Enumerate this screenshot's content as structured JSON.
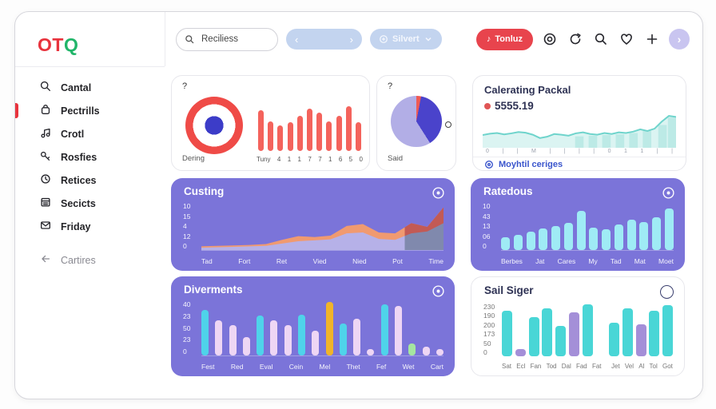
{
  "sidebar": {
    "logo_red": "OT",
    "logo_green": "Q",
    "items": [
      {
        "label": "Cantal",
        "icon": "search-icon"
      },
      {
        "label": "Pectrills",
        "icon": "bag-icon",
        "active": true
      },
      {
        "label": "Crotl",
        "icon": "music-icon"
      },
      {
        "label": "Rosfies",
        "icon": "key-icon"
      },
      {
        "label": "Retices",
        "icon": "clock-icon"
      },
      {
        "label": "Secicts",
        "icon": "list-icon"
      },
      {
        "label": "Friday",
        "icon": "mail-icon"
      }
    ],
    "back_label": "Cartires"
  },
  "topbar": {
    "search_value": "Reciliess",
    "pager_prev": "‹",
    "pager_next": "›",
    "filter_label": "Silvert",
    "button_icon": "♪",
    "button_label": "Tonluz",
    "avatar_glyph": "›"
  },
  "colors": {
    "accent_red": "#e8444d",
    "accent_green": "#21b569",
    "pill_blue": "#c3d4ef",
    "card_purple": "#7b74d9",
    "navy_text": "#2e3254",
    "link_blue": "#3a55cc"
  },
  "cards": {
    "overview": {
      "help": "?",
      "label": "Dering"
    },
    "pie_card": {
      "help": "?",
      "label": "Said"
    },
    "calerating": {
      "title": "Calerating Packal",
      "value": "5555.19",
      "link_label": "Moyhtil ceriges"
    },
    "custing": {
      "title": "Custing"
    },
    "ratedous": {
      "title": "Ratedous"
    },
    "diverments": {
      "title": "Diverments"
    },
    "sail": {
      "title": "Sail Siger"
    }
  },
  "chart_data": {
    "overview_bars": {
      "type": "bar",
      "color": "#f4635c",
      "values": [
        85,
        62,
        53,
        60,
        73,
        88,
        80,
        62,
        73,
        93,
        60
      ],
      "ticks": [
        "Tuny",
        "4",
        "1",
        "1",
        "7",
        "7",
        "1",
        "6",
        "5",
        "0"
      ]
    },
    "pie": {
      "type": "pie",
      "slices": [
        {
          "value": 3,
          "color": "#ef5a55"
        },
        {
          "value": 38,
          "color": "#4a43cb"
        },
        {
          "value": 59,
          "color": "#b2aee6"
        }
      ]
    },
    "calerating_spark": {
      "type": "area-line",
      "line_color": "#6fd4cc",
      "fill": "rgba(160,225,220,0.38)",
      "bar_color": "#bde9e5",
      "points": [
        38,
        42,
        44,
        40,
        43,
        47,
        45,
        39,
        29,
        33,
        41,
        39,
        36,
        43,
        46,
        41,
        39,
        44,
        41,
        46,
        44,
        48,
        55,
        50,
        57,
        78,
        95,
        92
      ],
      "bars": [
        {
          "x": 50,
          "v": 34
        },
        {
          "x": 57,
          "v": 36
        },
        {
          "x": 64,
          "v": 38
        },
        {
          "x": 71,
          "v": 40
        },
        {
          "x": 78,
          "v": 44
        },
        {
          "x": 85,
          "v": 50
        },
        {
          "x": 93,
          "v": 68
        },
        {
          "x": 98,
          "v": 90
        }
      ],
      "ticks": [
        "0",
        "|",
        "|",
        "M",
        "|",
        "|",
        "|",
        "|",
        "0",
        "1",
        "1",
        "|",
        "|"
      ]
    },
    "custing_area": {
      "type": "area",
      "y_ticks": [
        "10",
        "15",
        "4",
        "12",
        "0"
      ],
      "x_ticks": [
        "Tad",
        "Fort",
        "Ret",
        "Vied",
        "Nied",
        "Pot",
        "Time"
      ],
      "series": [
        {
          "name": "orange",
          "color": "#f09a70",
          "values": [
            8,
            9,
            10,
            11,
            13,
            22,
            30,
            28,
            31,
            52,
            56,
            38,
            36,
            58,
            50,
            92
          ]
        },
        {
          "name": "lavender",
          "color": "#b6b1e8",
          "values": [
            5,
            6,
            7,
            8,
            9,
            14,
            19,
            21,
            23,
            36,
            38,
            24,
            22,
            36,
            40,
            58
          ]
        }
      ],
      "highlight_from": 84,
      "highlight_colors": [
        "#c25a55",
        "#8089ad"
      ]
    },
    "ratedous_bars": {
      "type": "bar",
      "color": "#9febf5",
      "y_ticks": [
        "10",
        "43",
        "13",
        "06",
        "0"
      ],
      "x_ticks": [
        "Berbes",
        "Jat",
        "Cares",
        "My",
        "Tad",
        "Mat",
        "Moet"
      ],
      "values": [
        28,
        33,
        40,
        46,
        52,
        58,
        84,
        48,
        45,
        55,
        66,
        60,
        70,
        90
      ]
    },
    "diverments_bars": {
      "type": "bar",
      "palette": {
        "c": "#4fd3ea",
        "p": "#eed6f4",
        "y": "#f0b429",
        "g": "#a5e6a0"
      },
      "y_ticks": [
        "40",
        "23",
        "50",
        "23",
        "0"
      ],
      "x_ticks": [
        "Fest",
        "Red",
        "Eval",
        "Cein",
        "Mel",
        "Thet",
        "Fef",
        "Wet",
        "Cart"
      ],
      "bars": [
        {
          "v": 85,
          "c": "c"
        },
        {
          "v": 66,
          "c": "p"
        },
        {
          "v": 56,
          "c": "p"
        },
        {
          "v": 34,
          "c": "p"
        },
        {
          "v": 74,
          "c": "c"
        },
        {
          "v": 66,
          "c": "p"
        },
        {
          "v": 56,
          "c": "p"
        },
        {
          "v": 76,
          "c": "c"
        },
        {
          "v": 46,
          "c": "p"
        },
        {
          "v": 100,
          "c": "y"
        },
        {
          "v": 60,
          "c": "c"
        },
        {
          "v": 68,
          "c": "p"
        },
        {
          "v": 12,
          "c": "p"
        },
        {
          "v": 96,
          "c": "c"
        },
        {
          "v": 93,
          "c": "p"
        },
        {
          "v": 22,
          "c": "g"
        },
        {
          "v": 17,
          "c": "p"
        },
        {
          "v": 12,
          "c": "p"
        }
      ]
    },
    "sail_bars": {
      "type": "bar",
      "palette": {
        "t": "#49d6d6",
        "u": "#a48fd8"
      },
      "y_ticks": [
        "230",
        "190",
        "200",
        "173",
        "50",
        "0"
      ],
      "x_ticks": [
        "Sat",
        "Ecl",
        "Fan",
        "Tod",
        "Dal",
        "Fad",
        "Fat",
        "",
        "Jet",
        "Vel",
        "Al",
        "Tol",
        "Got"
      ],
      "bars": [
        {
          "v": 88,
          "c": "t"
        },
        {
          "v": 14,
          "c": "u"
        },
        {
          "v": 76,
          "c": "t"
        },
        {
          "v": 92,
          "c": "t"
        },
        {
          "v": 58,
          "c": "t"
        },
        {
          "v": 84,
          "c": "u"
        },
        {
          "v": 100,
          "c": "t"
        },
        {
          "v": 0,
          "c": "t"
        },
        {
          "v": 64,
          "c": "t"
        },
        {
          "v": 92,
          "c": "t"
        },
        {
          "v": 62,
          "c": "u"
        },
        {
          "v": 88,
          "c": "t"
        },
        {
          "v": 98,
          "c": "t"
        }
      ]
    }
  }
}
